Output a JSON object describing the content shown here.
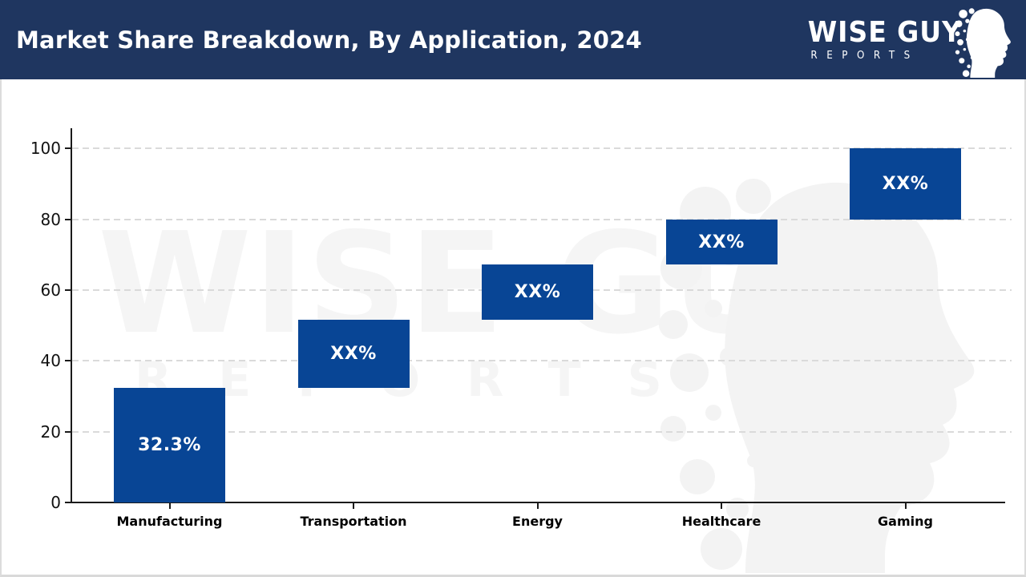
{
  "header": {
    "title": "Market Share Breakdown, By Application, 2024",
    "background_color": "#1f3660",
    "logo": {
      "line1": "WISE GUY",
      "line2": "REPORTS"
    }
  },
  "watermark": {
    "line1": "WISE GUY",
    "line2": "REPORTS"
  },
  "chart_data": {
    "type": "bar",
    "subtype": "waterfall",
    "title": "Market Share Breakdown, By Application, 2024",
    "categories": [
      "Manufacturing",
      "Transportation",
      "Energy",
      "Healthcare",
      "Gaming"
    ],
    "segments": [
      {
        "category": "Manufacturing",
        "start": 0,
        "end": 32.3,
        "label": "32.3%"
      },
      {
        "category": "Transportation",
        "start": 32.3,
        "end": 51.6,
        "label": "XX%"
      },
      {
        "category": "Energy",
        "start": 51.6,
        "end": 67.2,
        "label": "XX%"
      },
      {
        "category": "Healthcare",
        "start": 67.2,
        "end": 79.9,
        "label": "XX%"
      },
      {
        "category": "Gaming",
        "start": 79.9,
        "end": 100,
        "label": "XX%"
      }
    ],
    "xlabel": "",
    "ylabel": "",
    "ylim": [
      0,
      100
    ],
    "yticks": [
      0,
      20,
      40,
      60,
      80,
      100
    ],
    "grid": "horizontal-dashed",
    "legend": "none",
    "bar_color": "#084595",
    "bar_label_color": "#ffffff",
    "axis_color": "#1a1a1a"
  }
}
